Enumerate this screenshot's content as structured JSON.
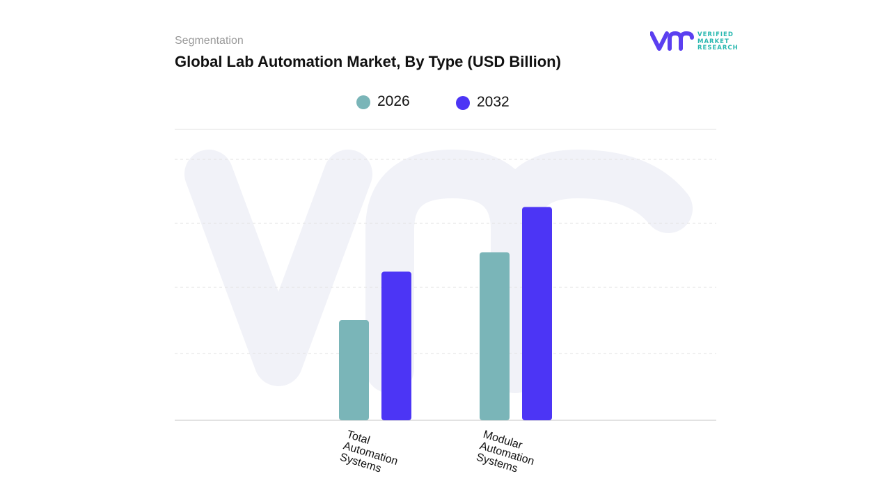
{
  "header": {
    "eyebrow": "Segmentation",
    "title": "Global Lab Automation Market, By Type (USD Billion)"
  },
  "logo": {
    "line1": "VERIFIED",
    "line2": "MARKET",
    "line3": "RESEARCH",
    "icon": "vmr-logo-icon"
  },
  "colors": {
    "series_2026": "#7ab5b8",
    "series_2032": "#4c35f5",
    "gridline": "#e6e6e6",
    "watermark": "#f1f2f8",
    "logo_purple": "#5b3ff0",
    "logo_teal": "#29b8b0"
  },
  "chart_data": {
    "type": "bar",
    "title": "Global Lab Automation Market, By Type (USD Billion)",
    "categories": [
      "Total Automation Systems",
      "Modular Automation Systems"
    ],
    "category_lines": [
      [
        "Total",
        "Automation",
        "Systems"
      ],
      [
        "Modular",
        "Automation",
        "Systems"
      ]
    ],
    "series": [
      {
        "name": "2026",
        "values": [
          1.55,
          2.6
        ]
      },
      {
        "name": "2032",
        "values": [
          2.3,
          3.3
        ]
      }
    ],
    "xlabel": "",
    "ylabel": "",
    "ylim": [
      0,
      4.5
    ],
    "grid": true,
    "legend": "top"
  }
}
